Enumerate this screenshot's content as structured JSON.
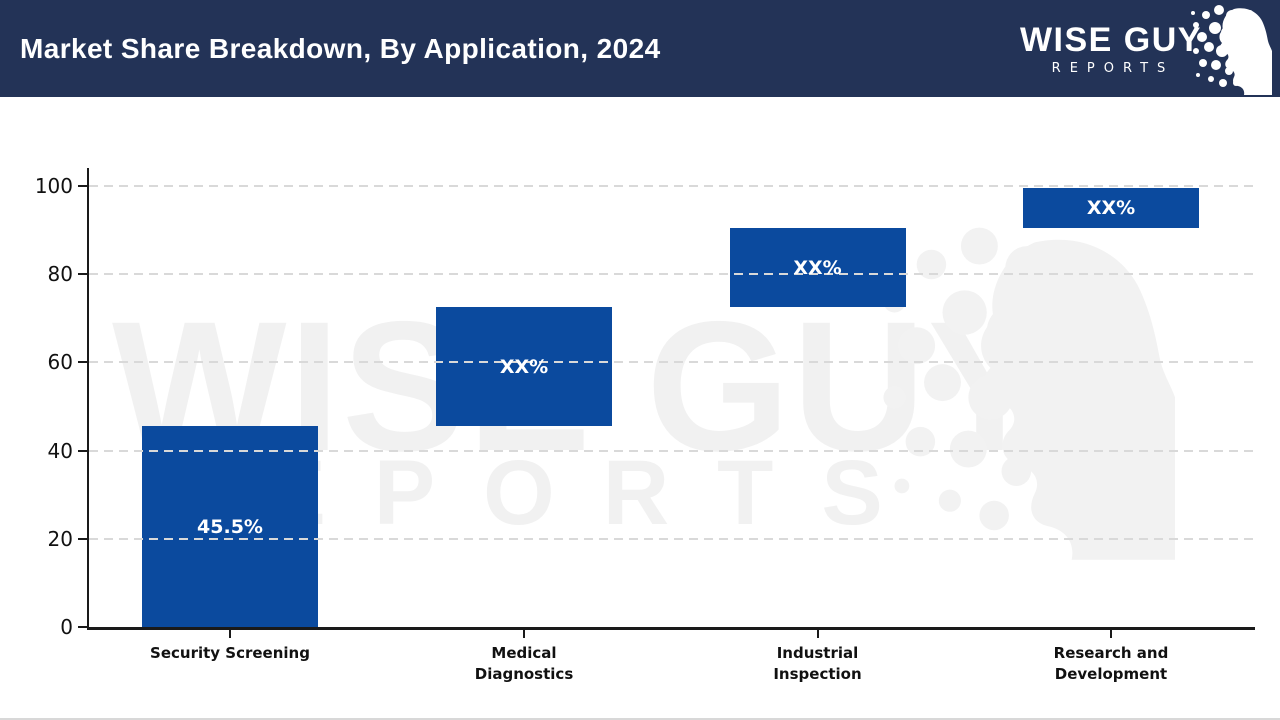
{
  "header": {
    "title": "Market Share Breakdown, By Application, 2024",
    "logo": {
      "title": "WISE GUY",
      "subtitle": "REPORTS"
    }
  },
  "watermark": {
    "line1": "WISE GUY",
    "line2": "REPORTS"
  },
  "colors": {
    "header_bg": "#233357",
    "bar": "#0b4a9e",
    "grid": "#d9d9d9",
    "axis": "#1a1a1a",
    "watermark": "#f1f1f1",
    "label_text": "#ffffff"
  },
  "chart_data": {
    "type": "bar",
    "subtype": "waterfall",
    "title": "Market Share Breakdown, By Application, 2024",
    "xlabel": "",
    "ylabel": "",
    "ylim": [
      0,
      105
    ],
    "yticks": [
      0,
      20,
      40,
      60,
      80,
      100
    ],
    "grid": "horizontal-dashed, drawn above bars",
    "legend": "none",
    "categories": [
      "Security Screening",
      "Medical Diagnostics",
      "Industrial Inspection",
      "Research and Development"
    ],
    "bars": [
      {
        "category": "Security Screening",
        "lines": [
          "Security Screening"
        ],
        "start": 0,
        "end": 45.5,
        "label": "45.5%"
      },
      {
        "category": "Medical Diagnostics",
        "lines": [
          "Medical",
          "Diagnostics"
        ],
        "start": 45.5,
        "end": 72.5,
        "label": "XX%"
      },
      {
        "category": "Industrial Inspection",
        "lines": [
          "Industrial",
          "Inspection"
        ],
        "start": 72.5,
        "end": 90.5,
        "label": "XX%"
      },
      {
        "category": "Research and Development",
        "lines": [
          "Research and",
          "Development"
        ],
        "start": 90.5,
        "end": 99.5,
        "label": "XX%"
      }
    ]
  }
}
